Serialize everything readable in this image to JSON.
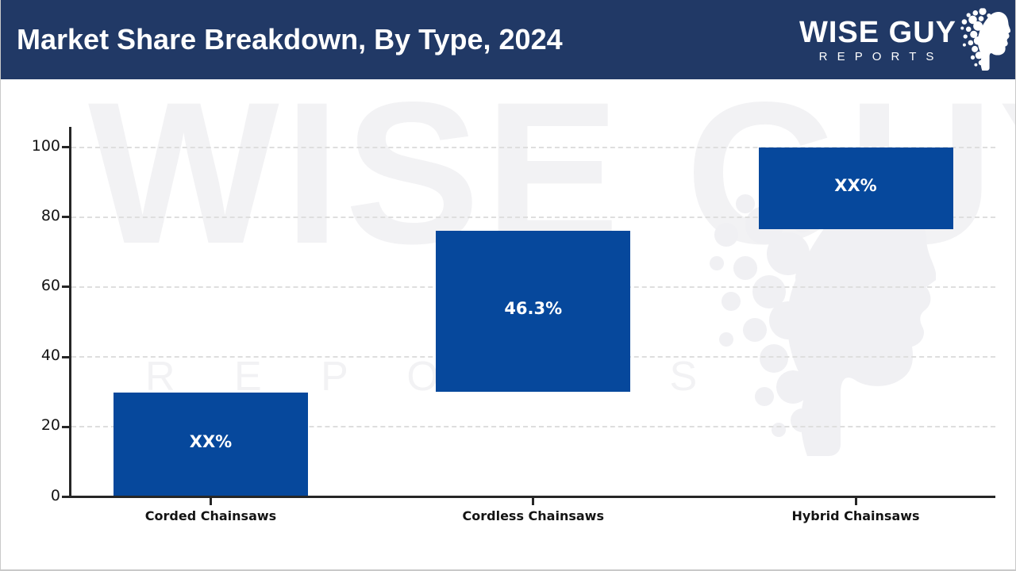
{
  "header": {
    "title": "Market Share Breakdown, By Type, 2024",
    "logo": {
      "line1": "WISE GUY",
      "line2": "R E P O R T S"
    }
  },
  "watermark": {
    "line1": "WISE GUY",
    "line2": "R E P O R T S"
  },
  "colors": {
    "header_bg": "#213966",
    "bar": "#06489c",
    "grid": "#dedede",
    "axis": "#262626",
    "watermark": "#f2f2f4"
  },
  "chart_data": {
    "type": "bar",
    "subtype": "waterfall",
    "title": "Market Share Breakdown, By Type, 2024",
    "categories": [
      "Corded Chainsaws",
      "Cordless Chainsaws",
      "Hybrid Chainsaws"
    ],
    "bars": [
      {
        "category": "Corded Chainsaws",
        "start": 0,
        "end": 29.8,
        "label": "XX%"
      },
      {
        "category": "Cordless Chainsaws",
        "start": 29.8,
        "end": 76.1,
        "label": "46.3%"
      },
      {
        "category": "Hybrid Chainsaws",
        "start": 76.1,
        "end": 100,
        "label": "XX%"
      }
    ],
    "value_labels": [
      "XX%",
      "46.3%",
      "XX%"
    ],
    "ylim": [
      0,
      105
    ],
    "yticks": [
      0,
      20,
      40,
      60,
      80,
      100
    ],
    "grid": "horizontal-dashed",
    "legend": "none",
    "bar_color": "#06489c"
  }
}
